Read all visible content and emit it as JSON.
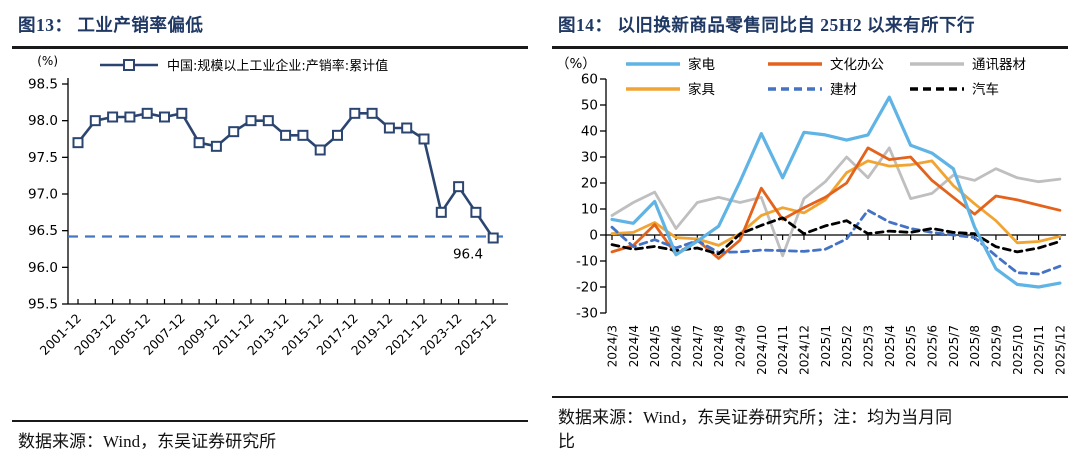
{
  "figures": [
    {
      "title": "图13：  工业产销率偏低",
      "source": "数据来源：Wind，东吴证券研究所",
      "chart_data": {
        "type": "line",
        "unit_label": "(%)",
        "legend": [
          "中国:规模以上工业企业:产销率:累计值"
        ],
        "line_color": "#2B4570",
        "marker": "square",
        "x": [
          2001,
          2002,
          2003,
          2004,
          2005,
          2006,
          2007,
          2008,
          2009,
          2010,
          2011,
          2012,
          2013,
          2014,
          2015,
          2016,
          2017,
          2018,
          2019,
          2020,
          2021,
          2022,
          2023,
          2024,
          2025
        ],
        "x_tick_labels": [
          "2001-12",
          "2003-12",
          "2005-12",
          "2007-12",
          "2009-12",
          "2011-12",
          "2013-12",
          "2015-12",
          "2017-12",
          "2019-12",
          "2021-12",
          "2023-12",
          "2025-12"
        ],
        "values": [
          97.7,
          98.0,
          98.05,
          98.05,
          98.1,
          98.05,
          98.1,
          97.7,
          97.65,
          97.85,
          98.0,
          98.0,
          97.8,
          97.8,
          97.6,
          97.8,
          98.1,
          98.1,
          97.9,
          97.9,
          97.75,
          96.75,
          97.1,
          96.75,
          96.4
        ],
        "ylim": [
          95.5,
          98.5
        ],
        "ytick_step": 0.5,
        "refline": {
          "value": 96.42,
          "label": "96.4",
          "style": "dashed",
          "color": "#4377C2"
        }
      }
    },
    {
      "title": "图14：  以旧换新商品零售同比自 25H2 以来有所下行",
      "source": "数据来源：Wind，东吴证券研究所；注：均为当月同比",
      "chart_data": {
        "type": "line",
        "unit_label": "（%）",
        "x": [
          "2024/3",
          "2024/4",
          "2024/5",
          "2024/6",
          "2024/7",
          "2024/8",
          "2024/9",
          "2024/10",
          "2024/11",
          "2024/12",
          "2025/1",
          "2025/2",
          "2025/3",
          "2025/4",
          "2025/5",
          "2025/6",
          "2025/7",
          "2025/8",
          "2025/9",
          "2025/10",
          "2025/11",
          "2025/12"
        ],
        "ylim": [
          -30,
          60
        ],
        "ytick_step": 10,
        "legend_position": "top",
        "series": [
          {
            "name": "家电",
            "color": "#5FB4E5",
            "dash": null,
            "values": [
              6,
              4.5,
              12.9,
              -7.6,
              -2.4,
              3.4,
              20.5,
              39,
              22,
              39.5,
              38.5,
              36.5,
              38.5,
              53,
              34.5,
              31.5,
              25.5,
              3,
              -13,
              -19,
              -20,
              -18.5
            ]
          },
          {
            "name": "文化办公",
            "color": "#E3631D",
            "dash": null,
            "values": [
              -6.5,
              -4,
              4,
              -7.5,
              -2,
              -9,
              -2,
              18,
              6,
              10.5,
              14.5,
              20,
              33.5,
              29,
              30,
              21,
              14.5,
              8,
              15,
              13.5,
              11.5,
              9.5
            ]
          },
          {
            "name": "通讯器材",
            "color": "#BFBFBF",
            "dash": null,
            "values": [
              7.5,
              12.5,
              16.5,
              2.5,
              12.5,
              14.5,
              12.5,
              14.5,
              -8,
              14,
              20.5,
              30,
              22,
              33.5,
              14,
              16,
              23,
              21,
              25.5,
              22,
              20.5,
              21.5
            ]
          },
          {
            "name": "家具",
            "color": "#F0A432",
            "dash": null,
            "values": [
              0.5,
              1,
              4.8,
              -1,
              -1.5,
              -4,
              0.5,
              7.5,
              10.5,
              8.5,
              13.5,
              24,
              28.5,
              26.5,
              27,
              28.5,
              19,
              12,
              5.5,
              -3,
              -2.5,
              -0.5
            ]
          },
          {
            "name": "建材",
            "color": "#4472C4",
            "dash": "7 5",
            "values": [
              3,
              -4.5,
              -1.8,
              -5,
              -2.2,
              -6.7,
              -6.5,
              -5.8,
              -6,
              -6.3,
              -5.5,
              -1.5,
              9.5,
              5,
              2.5,
              1,
              0,
              -1,
              -8,
              -14.5,
              -15,
              -12
            ]
          },
          {
            "name": "汽车",
            "color": "#000000",
            "dash": "7 5",
            "values": [
              -3.7,
              -5.5,
              -4.4,
              -6,
              -5,
              -7.3,
              0.4,
              3.7,
              6.6,
              0.5,
              3.5,
              5.5,
              0.5,
              1.5,
              1,
              2.5,
              1,
              0.5,
              -4.5,
              -6.5,
              -5,
              -2.5
            ]
          }
        ]
      }
    }
  ]
}
